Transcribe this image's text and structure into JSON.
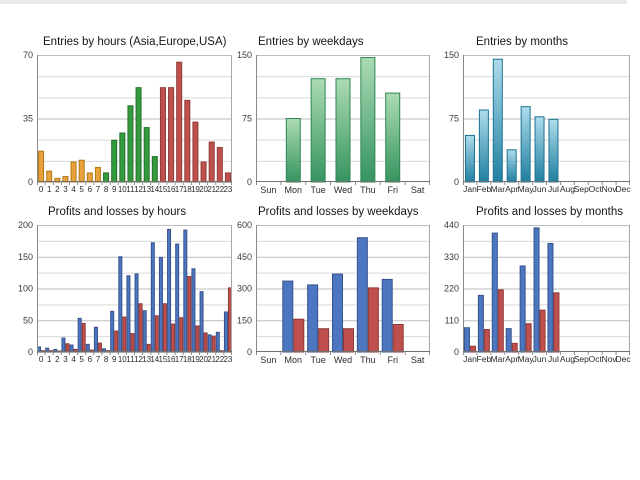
{
  "page": {
    "top_bar_color": "#e9e9e9",
    "background": "#ffffff"
  },
  "chart_data": [
    {
      "type": "bar",
      "title": "Entries by hours (Asia,Europe,USA)",
      "categories": [
        "0",
        "1",
        "2",
        "3",
        "4",
        "5",
        "6",
        "7",
        "8",
        "9",
        "10",
        "11",
        "12",
        "13",
        "14",
        "15",
        "16",
        "17",
        "18",
        "19",
        "20",
        "21",
        "22",
        "23"
      ],
      "series": [
        {
          "name": "Entries",
          "values": [
            17,
            6,
            2,
            3,
            11,
            12,
            5,
            8,
            5,
            23,
            27,
            42,
            52,
            30,
            14,
            52,
            52,
            66,
            45,
            33,
            11,
            22,
            19,
            5
          ],
          "bar_fills": [
            "#E9A23B",
            "#E9A23B",
            "#E9A23B",
            "#E9A23B",
            "#E9A23B",
            "#E9A23B",
            "#E9A23B",
            "#E9A23B",
            "#339A3D",
            "#339A3D",
            "#339A3D",
            "#339A3D",
            "#339A3D",
            "#339A3D",
            "#339A3D",
            "#C0504D",
            "#C0504D",
            "#C0504D",
            "#C0504D",
            "#C0504D",
            "#C0504D",
            "#C0504D",
            "#C0504D",
            "#C0504D"
          ],
          "bar_borders": [
            "#B37817",
            "#B37817",
            "#B37817",
            "#B37817",
            "#B37817",
            "#B37817",
            "#B37817",
            "#B37817",
            "#237129",
            "#237129",
            "#237129",
            "#237129",
            "#237129",
            "#237129",
            "#237129",
            "#8E3A37",
            "#8E3A37",
            "#8E3A37",
            "#8E3A37",
            "#8E3A37",
            "#8E3A37",
            "#8E3A37",
            "#8E3A37",
            "#8E3A37"
          ]
        }
      ],
      "xlabel": "",
      "ylabel": "",
      "ylim": [
        0,
        70
      ],
      "yticks": [
        0,
        35,
        70
      ],
      "minor_divisions": 6,
      "grid": true,
      "legend": "none"
    },
    {
      "type": "bar",
      "title": "Entries by weekdays",
      "categories": [
        "Sun",
        "Mon",
        "Tue",
        "Wed",
        "Thu",
        "Fri",
        "Sat"
      ],
      "series": [
        {
          "name": "Entries",
          "values": [
            0,
            75,
            122,
            122,
            147,
            105,
            0
          ],
          "gradient": [
            "#ACDBB4",
            "#35945F"
          ],
          "border": "#2E8653"
        }
      ],
      "xlabel": "",
      "ylabel": "",
      "ylim": [
        0,
        150
      ],
      "yticks": [
        0,
        75,
        150
      ],
      "minor_divisions": 6,
      "grid": true,
      "legend": "none"
    },
    {
      "type": "bar",
      "title": "Entries by months",
      "categories": [
        "Jan",
        "Feb",
        "Mar",
        "Apr",
        "May",
        "Jun",
        "Jul",
        "Aug",
        "Sep",
        "Oct",
        "Nov",
        "Dec"
      ],
      "series": [
        {
          "name": "Entries",
          "values": [
            55,
            85,
            145,
            38,
            89,
            77,
            74,
            0,
            0,
            0,
            0,
            0
          ],
          "gradient": [
            "#AEDCEC",
            "#1F7FA0"
          ],
          "border": "#1C7390"
        }
      ],
      "xlabel": "",
      "ylabel": "",
      "ylim": [
        0,
        150
      ],
      "yticks": [
        0,
        75,
        150
      ],
      "minor_divisions": 6,
      "grid": true,
      "legend": "none"
    },
    {
      "type": "bar",
      "title": "Profits and losses by hours",
      "categories": [
        "0",
        "1",
        "2",
        "3",
        "4",
        "5",
        "6",
        "7",
        "8",
        "9",
        "10",
        "11",
        "12",
        "13",
        "14",
        "15",
        "16",
        "17",
        "18",
        "19",
        "20",
        "21",
        "22",
        "23"
      ],
      "series": [
        {
          "name": "Profits",
          "values": [
            8,
            6,
            4,
            22,
            11,
            53,
            12,
            39,
            5,
            64,
            150,
            120,
            123,
            65,
            172,
            149,
            193,
            170,
            192,
            131,
            95,
            27,
            31,
            63
          ],
          "fill": "#4D76C0",
          "border": "#35538C"
        },
        {
          "name": "Losses",
          "values": [
            2,
            2,
            1,
            13,
            4,
            45,
            3,
            14,
            2,
            33,
            55,
            29,
            76,
            12,
            57,
            76,
            44,
            54,
            119,
            41,
            30,
            25,
            2,
            101
          ],
          "fill": "#C0504D",
          "border": "#8E3A37"
        }
      ],
      "xlabel": "",
      "ylabel": "",
      "ylim": [
        0,
        200
      ],
      "yticks": [
        0,
        50,
        100,
        150,
        200
      ],
      "minor_divisions": 8,
      "grid": true,
      "legend": "none"
    },
    {
      "type": "bar",
      "title": "Profits and losses by weekdays",
      "categories": [
        "Sun",
        "Mon",
        "Tue",
        "Wed",
        "Thu",
        "Fri",
        "Sat"
      ],
      "series": [
        {
          "name": "Profits",
          "values": [
            0,
            335,
            317,
            368,
            540,
            343,
            0
          ],
          "fill": "#4D76C0",
          "border": "#35538C"
        },
        {
          "name": "Losses",
          "values": [
            0,
            155,
            110,
            110,
            303,
            130,
            0
          ],
          "fill": "#C0504D",
          "border": "#8E3A37"
        }
      ],
      "xlabel": "",
      "ylabel": "",
      "ylim": [
        0,
        600
      ],
      "yticks": [
        0,
        150,
        300,
        450,
        600
      ],
      "minor_divisions": 8,
      "grid": true,
      "legend": "none"
    },
    {
      "type": "bar",
      "title": "Profits and losses by months",
      "categories": [
        "Jan",
        "Feb",
        "Mar",
        "Apr",
        "May",
        "Jun",
        "Jul",
        "Aug",
        "Sep",
        "Oct",
        "Nov",
        "Dec"
      ],
      "series": [
        {
          "name": "Profits",
          "values": [
            84,
            196,
            412,
            81,
            298,
            430,
            376,
            0,
            0,
            0,
            0,
            0
          ],
          "fill": "#4D76C0",
          "border": "#35538C"
        },
        {
          "name": "Losses",
          "values": [
            20,
            78,
            215,
            30,
            98,
            145,
            205,
            0,
            0,
            0,
            0,
            0
          ],
          "fill": "#C0504D",
          "border": "#8E3A37"
        }
      ],
      "xlabel": "",
      "ylabel": "",
      "ylim": [
        0,
        440
      ],
      "yticks": [
        0,
        110,
        220,
        330,
        440
      ],
      "minor_divisions": 8,
      "grid": true,
      "legend": "none"
    }
  ]
}
